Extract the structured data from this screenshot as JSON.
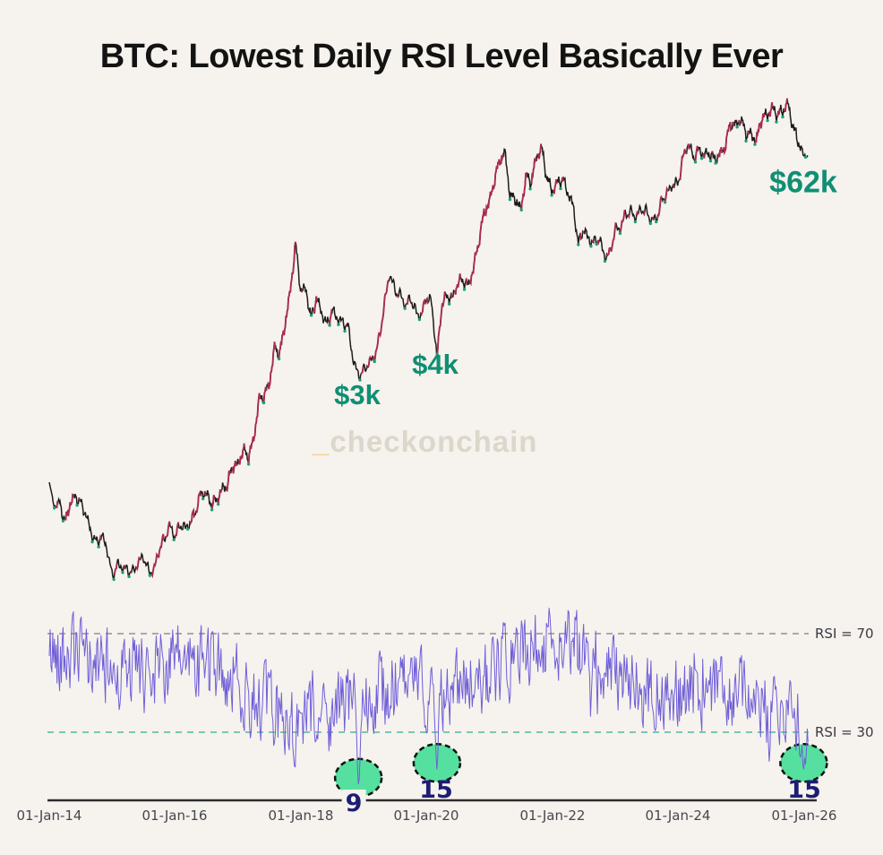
{
  "page": {
    "title": "BTC: Lowest Daily RSI Level Basically Ever",
    "watermark_prefix": "_",
    "watermark_text": "checkonchain"
  },
  "colors": {
    "background": "#f6f2ed",
    "price_line": "#1c1c1c",
    "price_up": "#a82c50",
    "price_bottom_dot": "#17a07c",
    "annotation_teal": "#0f8f73",
    "rsi_line": "#6f5fd8",
    "rsi70_dash": "#b3a4ac",
    "rsi30_dash": "#79c7b1",
    "dip_circle_fill": "#55e0a0",
    "dip_circle_border": "#0c120e",
    "dip_number": "#1d1d72",
    "axis_line": "#2d2d2d"
  },
  "chart_data": {
    "type": "line",
    "x_axis": {
      "ticks": [
        "01-Jan-14",
        "01-Jan-16",
        "01-Jan-18",
        "01-Jan-20",
        "01-Jan-22",
        "01-Jan-24",
        "01-Jan-26"
      ],
      "grid": false
    },
    "panels": [
      {
        "name": "btc-price-usd",
        "type": "line",
        "scale": "log",
        "series": [
          {
            "name": "BTC Price",
            "points": [
              [
                "2014-01",
                770
              ],
              [
                "2014-02",
                550
              ],
              [
                "2014-03",
                590
              ],
              [
                "2014-04",
                445
              ],
              [
                "2014-05",
                580
              ],
              [
                "2014-06",
                640
              ],
              [
                "2014-07",
                580
              ],
              [
                "2014-08",
                500
              ],
              [
                "2014-09",
                390
              ],
              [
                "2014-10",
                340
              ],
              [
                "2014-11",
                375
              ],
              [
                "2014-12",
                320
              ],
              [
                "2015-01",
                217
              ],
              [
                "2015-02",
                254
              ],
              [
                "2015-03",
                245
              ],
              [
                "2015-04",
                235
              ],
              [
                "2015-05",
                230
              ],
              [
                "2015-06",
                262
              ],
              [
                "2015-07",
                284
              ],
              [
                "2015-08",
                230
              ],
              [
                "2015-09",
                236
              ],
              [
                "2015-10",
                314
              ],
              [
                "2015-11",
                360
              ],
              [
                "2015-12",
                430
              ],
              [
                "2016-01",
                370
              ],
              [
                "2016-02",
                437
              ],
              [
                "2016-03",
                415
              ],
              [
                "2016-04",
                450
              ],
              [
                "2016-05",
                530
              ],
              [
                "2016-06",
                670
              ],
              [
                "2016-07",
                655
              ],
              [
                "2016-08",
                575
              ],
              [
                "2016-09",
                608
              ],
              [
                "2016-10",
                700
              ],
              [
                "2016-11",
                745
              ],
              [
                "2016-12",
                963
              ],
              [
                "2017-01",
                970
              ],
              [
                "2017-02",
                1190
              ],
              [
                "2017-03",
                1080
              ],
              [
                "2017-04",
                1350
              ],
              [
                "2017-05",
                2300
              ],
              [
                "2017-06",
                2480
              ],
              [
                "2017-07",
                2875
              ],
              [
                "2017-08",
                4700
              ],
              [
                "2017-09",
                4340
              ],
              [
                "2017-10",
                6450
              ],
              [
                "2017-11",
                9950
              ],
              [
                "2017-12",
                19100
              ],
              [
                "2018-01",
                10200
              ],
              [
                "2018-02",
                10300
              ],
              [
                "2018-03",
                6930
              ],
              [
                "2018-04",
                9240
              ],
              [
                "2018-05",
                7500
              ],
              [
                "2018-06",
                6400
              ],
              [
                "2018-07",
                7750
              ],
              [
                "2018-08",
                7000
              ],
              [
                "2018-09",
                6600
              ],
              [
                "2018-10",
                6300
              ],
              [
                "2018-11",
                4020
              ],
              [
                "2018-12",
                3230
              ],
              [
                "2019-01",
                3440
              ],
              [
                "2019-02",
                3855
              ],
              [
                "2019-03",
                4100
              ],
              [
                "2019-04",
                5320
              ],
              [
                "2019-05",
                8560
              ],
              [
                "2019-06",
                12900
              ],
              [
                "2019-07",
                10090
              ],
              [
                "2019-08",
                9600
              ],
              [
                "2019-09",
                8290
              ],
              [
                "2019-10",
                9150
              ],
              [
                "2019-11",
                7550
              ],
              [
                "2019-12",
                7190
              ],
              [
                "2020-01",
                9350
              ],
              [
                "2020-02",
                8550
              ],
              [
                "2020-03",
                4100
              ],
              [
                "2020-04",
                8650
              ],
              [
                "2020-05",
                9450
              ],
              [
                "2020-06",
                9140
              ],
              [
                "2020-07",
                11350
              ],
              [
                "2020-08",
                11650
              ],
              [
                "2020-09",
                10780
              ],
              [
                "2020-10",
                13800
              ],
              [
                "2020-11",
                19700
              ],
              [
                "2020-12",
                29000
              ],
              [
                "2021-01",
                33100
              ],
              [
                "2021-02",
                45200
              ],
              [
                "2021-03",
                58800
              ],
              [
                "2021-04",
                64800
              ],
              [
                "2021-05",
                35700
              ],
              [
                "2021-06",
                35000
              ],
              [
                "2021-07",
                29800
              ],
              [
                "2021-08",
                47100
              ],
              [
                "2021-09",
                43800
              ],
              [
                "2021-10",
                61300
              ],
              [
                "2021-11",
                69000
              ],
              [
                "2021-12",
                46200
              ],
              [
                "2022-01",
                38500
              ],
              [
                "2022-02",
                43200
              ],
              [
                "2022-03",
                45500
              ],
              [
                "2022-04",
                37700
              ],
              [
                "2022-05",
                31800
              ],
              [
                "2022-06",
                18900
              ],
              [
                "2022-07",
                23300
              ],
              [
                "2022-08",
                20050
              ],
              [
                "2022-09",
                19400
              ],
              [
                "2022-10",
                20500
              ],
              [
                "2022-11",
                16000
              ],
              [
                "2022-12",
                16550
              ],
              [
                "2023-01",
                23100
              ],
              [
                "2023-02",
                23500
              ],
              [
                "2023-03",
                28500
              ],
              [
                "2023-04",
                29250
              ],
              [
                "2023-05",
                27200
              ],
              [
                "2023-06",
                30480
              ],
              [
                "2023-07",
                29230
              ],
              [
                "2023-08",
                25940
              ],
              [
                "2023-09",
                26960
              ],
              [
                "2023-10",
                34500
              ],
              [
                "2023-11",
                37700
              ],
              [
                "2023-12",
                42270
              ],
              [
                "2024-01",
                42580
              ],
              [
                "2024-02",
                61200
              ],
              [
                "2024-03",
                73000
              ],
              [
                "2024-04",
                60600
              ],
              [
                "2024-05",
                67500
              ],
              [
                "2024-06",
                62700
              ],
              [
                "2024-07",
                64600
              ],
              [
                "2024-08",
                59000
              ],
              [
                "2024-09",
                63300
              ],
              [
                "2024-10",
                70200
              ],
              [
                "2024-11",
                96400
              ],
              [
                "2024-12",
                93400
              ],
              [
                "2025-01",
                102000
              ],
              [
                "2025-02",
                84300
              ],
              [
                "2025-03",
                82500
              ],
              [
                "2025-04",
                76300
              ],
              [
                "2025-05",
                104000
              ],
              [
                "2025-06",
                107000
              ],
              [
                "2025-07",
                118000
              ],
              [
                "2025-08",
                108000
              ],
              [
                "2025-09",
                114000
              ],
              [
                "2025-10",
                126000
              ],
              [
                "2025-11",
                91000
              ],
              [
                "2025-12",
                75000
              ],
              [
                "2026-01",
                62000
              ]
            ]
          }
        ],
        "annotations": [
          {
            "label": "$3k",
            "date": "2018-12",
            "price": 3200
          },
          {
            "label": "$4k",
            "date": "2020-03",
            "price": 4000
          },
          {
            "label": "$62k",
            "date": "2026-01",
            "price": 62000
          }
        ]
      },
      {
        "name": "rsi-daily",
        "type": "line",
        "ylim": [
          0,
          100
        ],
        "thresholds": [
          {
            "label": "RSI = 70",
            "value": 70
          },
          {
            "label": "RSI = 30",
            "value": 30
          }
        ],
        "annotated_lows": [
          {
            "label": "9",
            "date": "2018-12",
            "value": 9
          },
          {
            "label": "15",
            "date": "2020-03",
            "value": 15
          },
          {
            "label": "15",
            "date": "2026-01",
            "value": 15
          }
        ]
      }
    ]
  }
}
